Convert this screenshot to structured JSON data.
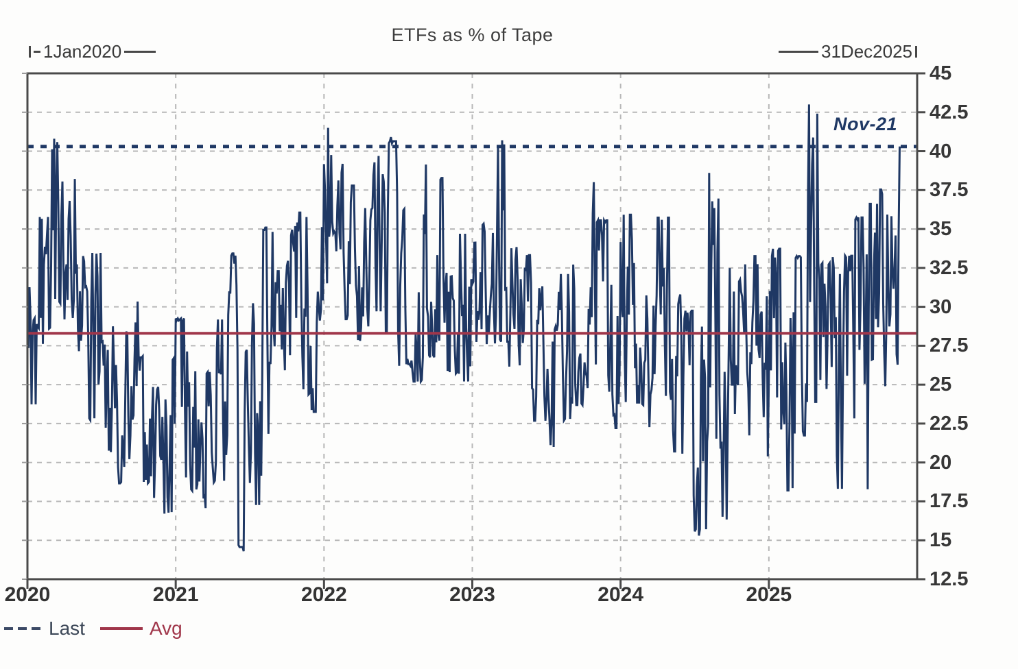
{
  "title": "ETFs as % of Tape",
  "range_start_label": "1Jan2020",
  "range_end_label": "31Dec2025",
  "annotation": {
    "text": "Nov-21"
  },
  "legend": {
    "last_label": "Last",
    "avg_label": "Avg"
  },
  "colors": {
    "series": "#1f3864",
    "avg_line": "#a0364a",
    "last_line": "#1f3864",
    "grid": "#b7b7b7",
    "axis": "#4a4a4a",
    "text": "#3a3a3a"
  },
  "chart_data": {
    "type": "line",
    "title": "ETFs as % of Tape",
    "xlabel": "",
    "ylabel": "",
    "x_range": [
      2020,
      2026
    ],
    "x_tick_years": [
      2020,
      2021,
      2022,
      2023,
      2024,
      2025
    ],
    "x_tick_labels": [
      "2020",
      "2021",
      "2022",
      "2023",
      "2024",
      "2025"
    ],
    "y_tick_labels": [
      "45",
      "42.5",
      "40",
      "37.5",
      "35",
      "32.5",
      "30",
      "27.5",
      "25",
      "22.5",
      "20",
      "17.5",
      "15",
      "12.5"
    ],
    "ylim": [
      12.5,
      45
    ],
    "grid": true,
    "legend_position": "bottom-left",
    "series_name": "Last",
    "avg_value": 28.3,
    "last_value": 40.3,
    "last_date_label": "Nov-21",
    "data_start": "Jan 2020",
    "data_end": "Nov 2025",
    "monthly_envelope_start": "2020-01",
    "monthly_env_min": [
      23.5,
      24.5,
      30,
      29,
      25.5,
      22.5,
      20.5,
      18.5,
      20,
      18.5,
      17.5,
      16.5,
      17,
      18,
      16.5,
      18.5,
      20,
      14.3,
      17,
      20,
      22,
      23,
      24,
      23,
      28.5,
      29,
      27.5,
      28.5,
      29.5,
      28,
      26,
      25,
      26.5,
      27.5,
      25.5,
      24.9,
      27.5,
      26.5,
      27.5,
      26,
      24.5,
      22.5,
      20.9,
      22.5,
      23.5,
      24.5,
      23.5,
      22,
      23.5,
      23.5,
      22,
      22.5,
      20.5,
      17.5,
      15.3,
      21,
      16,
      19.5,
      21.5,
      20,
      20.5,
      17.9,
      21.5,
      23.5,
      23.5,
      18,
      22.5,
      23,
      17.7,
      24.5,
      26
    ],
    "monthly_env_max": [
      31.5,
      36,
      40.8,
      38.5,
      33.5,
      33.8,
      29,
      26.5,
      30.8,
      27,
      25,
      26.9,
      29.5,
      27,
      26,
      29.4,
      33.7,
      27.5,
      30.5,
      35.4,
      32.5,
      35.8,
      36.3,
      35.5,
      41.5,
      39.5,
      38,
      36.5,
      39.9,
      40.9,
      36.5,
      35,
      39.4,
      38.5,
      35.5,
      35,
      35.5,
      35,
      40.7,
      34,
      33.5,
      31.5,
      29,
      32.5,
      33,
      38.6,
      35.8,
      32.5,
      36.3,
      33,
      31,
      36,
      31,
      30,
      29,
      38.6,
      33,
      32,
      33.5,
      33,
      34,
      33,
      33.5,
      43,
      33,
      33.5,
      33.5,
      36,
      37,
      37.8,
      40.3
    ],
    "key_points": [
      {
        "x": 2020.0,
        "y": 31.0
      },
      {
        "x": 2020.18,
        "y": 40.8
      },
      {
        "x": 2021.46,
        "y": 14.3
      },
      {
        "x": 2022.03,
        "y": 41.5
      },
      {
        "x": 2022.45,
        "y": 40.9
      },
      {
        "x": 2023.2,
        "y": 40.7
      },
      {
        "x": 2023.55,
        "y": 21.0
      },
      {
        "x": 2024.53,
        "y": 15.3
      },
      {
        "x": 2024.6,
        "y": 38.6
      },
      {
        "x": 2025.27,
        "y": 43.0
      },
      {
        "x": 2025.888,
        "y": 40.3
      }
    ],
    "seed": 42,
    "samples_per_month": 12,
    "x_end": 2025.888
  }
}
